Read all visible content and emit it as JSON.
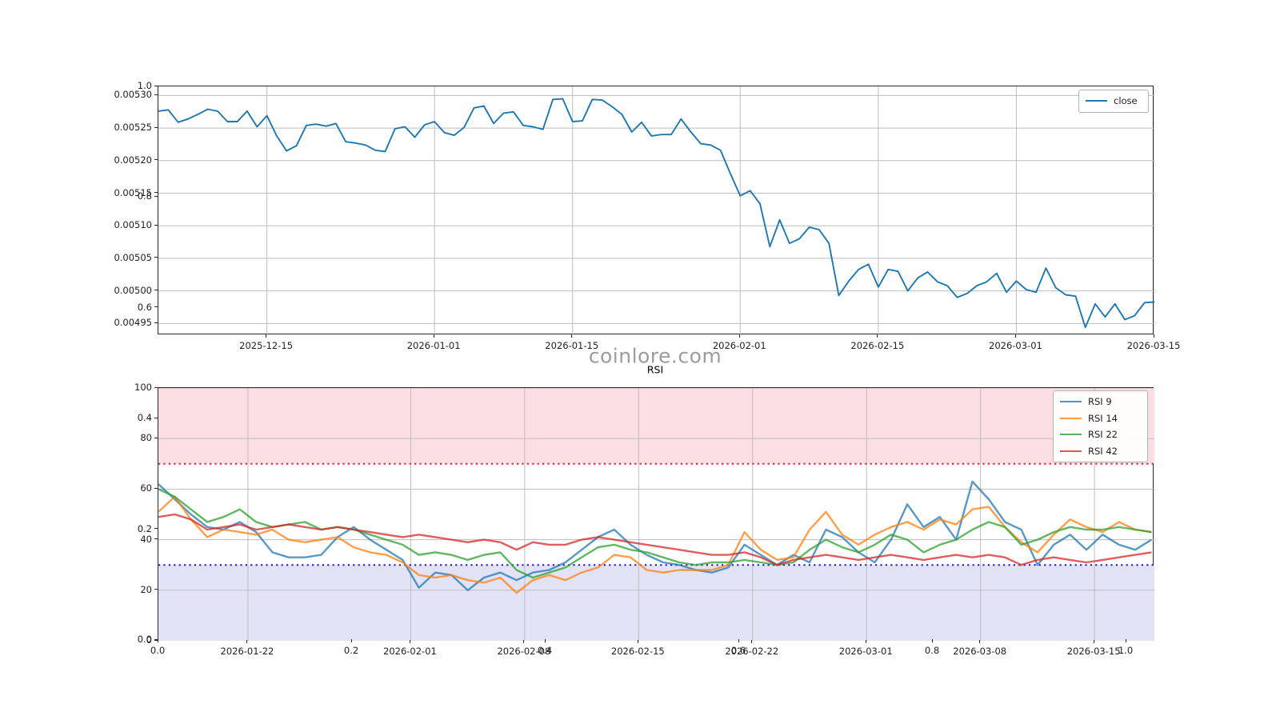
{
  "watermark": "coinlore.com",
  "overlay_axis": {
    "y_ticks": [
      "1.0",
      "0.8",
      "0.6",
      "0.4",
      "0.2",
      "0.0"
    ],
    "x_ticks": [
      "0.0",
      "0.2",
      "0.4",
      "0.6",
      "0.8",
      "1.0"
    ]
  },
  "chart_data": [
    {
      "type": "line",
      "title": "",
      "legend_position": "upper right",
      "grid": true,
      "start_date": "2025-12-04",
      "x_tick_labels": [
        "2025-12-15",
        "2026-01-01",
        "2026-01-15",
        "2026-02-01",
        "2026-02-15",
        "2026-03-01",
        "2026-03-15"
      ],
      "x_tick_indices": [
        11,
        28,
        42,
        59,
        73,
        87,
        101
      ],
      "y_tick_labels": [
        "0.00530",
        "0.00525",
        "0.00520",
        "0.00515",
        "0.00510",
        "0.00505",
        "0.00500",
        "0.00495"
      ],
      "y_tick_values": [
        0.0053,
        0.00525,
        0.0052,
        0.00515,
        0.0051,
        0.00505,
        0.005,
        0.00495
      ],
      "ylim": [
        0.004932,
        0.005314
      ],
      "series": [
        {
          "name": "close",
          "color": "#1f77b4",
          "values": [
            0.005276,
            0.005278,
            0.005259,
            0.005264,
            0.005271,
            0.005279,
            0.005276,
            0.00526,
            0.00526,
            0.005276,
            0.005252,
            0.005269,
            0.005238,
            0.005215,
            0.005223,
            0.005254,
            0.005256,
            0.005253,
            0.005257,
            0.005229,
            0.005227,
            0.005224,
            0.005216,
            0.005214,
            0.005249,
            0.005252,
            0.005236,
            0.005255,
            0.00526,
            0.005243,
            0.005239,
            0.005251,
            0.005281,
            0.005284,
            0.005257,
            0.005273,
            0.005275,
            0.005254,
            0.005252,
            0.005248,
            0.005294,
            0.005295,
            0.00526,
            0.005261,
            0.005294,
            0.005293,
            0.005283,
            0.005271,
            0.005244,
            0.005259,
            0.005238,
            0.00524,
            0.00524,
            0.005264,
            0.005244,
            0.005226,
            0.005224,
            0.005216,
            0.00518,
            0.005146,
            0.005154,
            0.005134,
            0.005068,
            0.005109,
            0.005073,
            0.00508,
            0.005098,
            0.005094,
            0.005073,
            0.004993,
            0.005015,
            0.005033,
            0.005041,
            0.005006,
            0.005033,
            0.00503,
            0.005,
            0.00502,
            0.005029,
            0.005014,
            0.005008,
            0.00499,
            0.004996,
            0.005008,
            0.005014,
            0.005027,
            0.004998,
            0.005015,
            0.005002,
            0.004998,
            0.005035,
            0.005005,
            0.004994,
            0.004992,
            0.004944,
            0.00498,
            0.00496,
            0.00498,
            0.004956,
            0.004962,
            0.004982,
            0.004983
          ]
        }
      ]
    },
    {
      "type": "line",
      "title": "RSI",
      "legend_position": "upper right",
      "grid": true,
      "start_date": "2026-01-16",
      "x_tick_labels": [
        "2026-01-22",
        "2026-02-01",
        "2026-02-08",
        "2026-02-15",
        "2026-02-22",
        "2026-03-01",
        "2026-03-08",
        "2026-03-15"
      ],
      "x_tick_day_offsets": [
        5.5,
        15.5,
        22.5,
        29.5,
        36.5,
        43.5,
        50.5,
        57.5
      ],
      "y_tick_labels": [
        "100",
        "80",
        "60",
        "40",
        "20",
        "0"
      ],
      "y_tick_values": [
        100,
        80,
        60,
        40,
        20,
        0
      ],
      "ylim": [
        0,
        100
      ],
      "overbought_level": 70,
      "oversold_level": 30,
      "overbought_band_color": "#fbdee1",
      "oversold_band_color": "#e3e3f8",
      "overbought_line_color": "#dd2020",
      "oversold_line_color": "#1a1ad0",
      "series": [
        {
          "name": "RSI 9",
          "color": "#1f77b4",
          "values": [
            62,
            56,
            50,
            45,
            44,
            47,
            43,
            35,
            33,
            33,
            34,
            41,
            45,
            40,
            36,
            32,
            21,
            27,
            26,
            20,
            25,
            27,
            24,
            27,
            28,
            31,
            36,
            41,
            44,
            38,
            34,
            31,
            30,
            28,
            27,
            29,
            38,
            34,
            30,
            34,
            31,
            44,
            41,
            35,
            31,
            40,
            54,
            45,
            49,
            40,
            63,
            56,
            47,
            44,
            30,
            38,
            42,
            36,
            42,
            38,
            36,
            40
          ]
        },
        {
          "name": "RSI 14",
          "color": "#ff7f0e",
          "values": [
            51,
            57,
            48,
            41,
            44,
            43,
            42,
            44,
            40,
            39,
            40,
            41,
            37,
            35,
            34,
            31,
            26,
            25,
            26,
            24,
            23,
            25,
            19,
            24,
            26,
            24,
            27,
            29,
            34,
            33,
            28,
            27,
            28,
            28,
            28,
            30,
            43,
            36,
            32,
            33,
            44,
            51,
            42,
            38,
            42,
            45,
            47,
            44,
            48,
            46,
            52,
            53,
            45,
            39,
            35,
            42,
            48,
            45,
            43,
            47,
            44,
            43
          ]
        },
        {
          "name": "RSI 22",
          "color": "#2ca02c",
          "values": [
            60,
            57,
            52,
            47,
            49,
            52,
            47,
            45,
            46,
            47,
            44,
            45,
            44,
            42,
            40,
            38,
            34,
            35,
            34,
            32,
            34,
            35,
            28,
            25,
            27,
            29,
            33,
            37,
            38,
            36,
            35,
            33,
            31,
            30,
            31,
            31,
            32,
            31,
            30,
            31,
            36,
            40,
            37,
            35,
            38,
            42,
            40,
            35,
            38,
            40,
            44,
            47,
            45,
            38,
            40,
            43,
            45,
            44,
            44,
            45,
            44,
            43
          ]
        },
        {
          "name": "RSI 42",
          "color": "#d62728",
          "values": [
            49,
            50,
            48,
            44,
            45,
            46,
            44,
            45,
            46,
            45,
            44,
            45,
            44,
            43,
            42,
            41,
            42,
            41,
            40,
            39,
            40,
            39,
            36,
            39,
            38,
            38,
            40,
            41,
            40,
            39,
            38,
            37,
            36,
            35,
            34,
            34,
            35,
            33,
            30,
            32,
            33,
            34,
            33,
            32,
            33,
            34,
            33,
            32,
            33,
            34,
            33,
            34,
            33,
            30,
            32,
            33,
            32,
            31,
            32,
            33,
            34,
            35
          ]
        }
      ]
    }
  ]
}
